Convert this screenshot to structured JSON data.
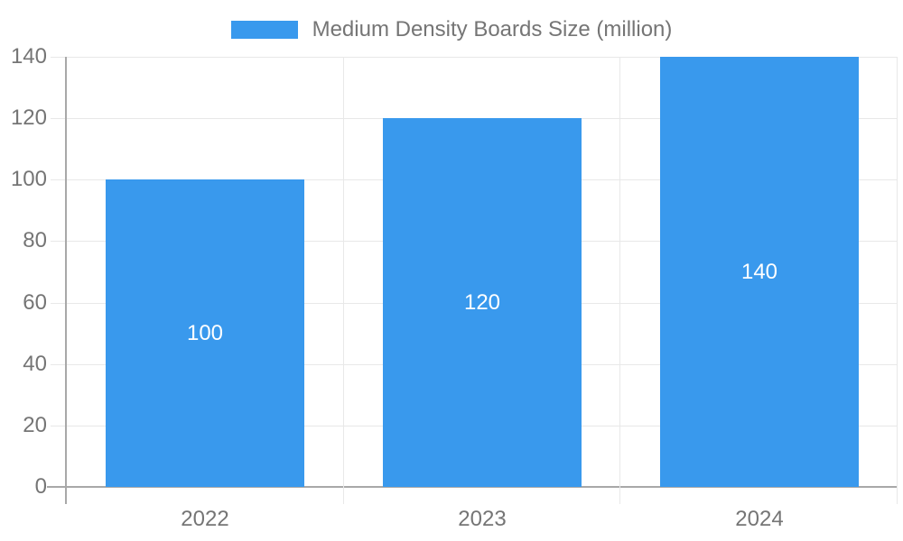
{
  "chart_data": {
    "type": "bar",
    "title": "Medium Density Boards Size (million)",
    "categories": [
      "2022",
      "2023",
      "2024"
    ],
    "values": [
      100,
      120,
      140
    ],
    "value_labels": [
      "100",
      "120",
      "140"
    ],
    "xlabel": "",
    "ylabel": "",
    "ylim": [
      0,
      140
    ],
    "yticks": [
      0,
      20,
      40,
      60,
      80,
      100,
      120,
      140
    ],
    "ytick_labels": [
      "0",
      "20",
      "40",
      "60",
      "80",
      "100",
      "120",
      "140"
    ],
    "grid": "horizontal-and-category-boundaries",
    "legend_position": "top-center",
    "bar_color": "#3999ED",
    "value_label_color": "#ffffff",
    "tick_text_color": "#757575",
    "gridline_color": "#e8e8e8",
    "axis_line_color": "#a8a8a8",
    "background_color": "#ffffff"
  },
  "legend": {
    "label": "Medium Density Boards Size (million)",
    "swatch_color": "#3999ED"
  }
}
